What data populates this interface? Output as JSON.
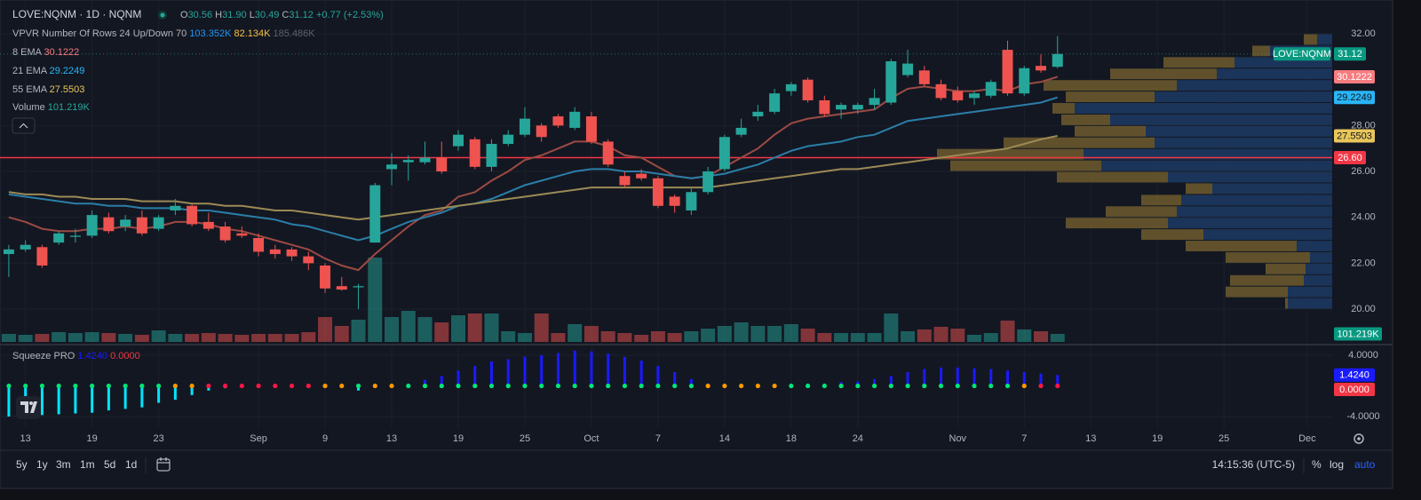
{
  "header": {
    "symbol": "LOVE:NQNM · 1D · NQNM",
    "ohlc": [
      {
        "key": "O",
        "value": "30.56"
      },
      {
        "key": "H",
        "value": "31.90"
      },
      {
        "key": "L",
        "value": "30.49"
      },
      {
        "key": "C",
        "value": "31.12"
      }
    ],
    "change": "+0.77 (+2.53%)"
  },
  "toolbar": {
    "ranges": [
      "5y",
      "1y",
      "3m",
      "1m",
      "5d",
      "1d"
    ],
    "time": "14:15:36 (UTC-5)",
    "percent": "%",
    "log": "log",
    "auto": "auto"
  },
  "chart_data": {
    "type": "candlestick",
    "symbol_tag": "LOVE:NQNM",
    "up_color": "#26a69a",
    "down_color": "#ef5350",
    "open": [
      22.4,
      22.6,
      22.7,
      22.9,
      23.15,
      23.2,
      24.0,
      23.6,
      24.0,
      23.5,
      24.3,
      24.5,
      23.8,
      23.6,
      23.3,
      23.1,
      22.6,
      22.6,
      22.3,
      21.9,
      21.0,
      20.95,
      22.9,
      26.1,
      26.4,
      26.4,
      26.6,
      27.1,
      27.4,
      26.2,
      27.2,
      27.6,
      28.0,
      28.4,
      27.9,
      28.4,
      27.3,
      25.8,
      25.9,
      25.7,
      24.9,
      24.3,
      25.1,
      26.1,
      27.6,
      28.4,
      28.6,
      29.5,
      30.0,
      29.1,
      28.7,
      28.7,
      28.9,
      29.0,
      30.2,
      30.4,
      29.8,
      29.5,
      29.2,
      29.3,
      31.3,
      29.4,
      30.6,
      30.56
    ],
    "high": [
      22.8,
      23.0,
      22.8,
      23.4,
      23.5,
      24.3,
      24.2,
      24.1,
      24.3,
      24.1,
      24.8,
      24.6,
      24.2,
      23.8,
      23.6,
      23.3,
      22.8,
      22.7,
      22.5,
      22.0,
      21.4,
      21.1,
      25.5,
      26.8,
      26.7,
      27.3,
      27.3,
      27.8,
      27.5,
      27.4,
      27.8,
      28.8,
      28.1,
      28.5,
      28.8,
      28.6,
      27.4,
      26.0,
      26.1,
      25.8,
      25.0,
      25.3,
      26.2,
      27.6,
      28.3,
      28.9,
      29.6,
      29.9,
      30.1,
      29.3,
      29.0,
      29.0,
      29.6,
      30.9,
      31.3,
      30.6,
      30.0,
      29.7,
      29.5,
      30.0,
      31.7,
      30.6,
      31.1,
      31.9
    ],
    "low": [
      21.4,
      22.5,
      21.8,
      22.8,
      22.9,
      23.1,
      23.3,
      23.4,
      23.2,
      23.4,
      24.1,
      23.6,
      23.4,
      22.9,
      23.1,
      22.3,
      22.2,
      22.1,
      21.7,
      20.7,
      20.8,
      20.0,
      22.9,
      25.4,
      25.6,
      26.3,
      25.9,
      26.9,
      26.1,
      26.0,
      27.1,
      27.5,
      27.3,
      27.9,
      27.8,
      27.2,
      26.2,
      25.3,
      25.6,
      24.4,
      24.2,
      24.1,
      25.0,
      26.0,
      27.5,
      28.2,
      28.5,
      29.3,
      29.0,
      28.4,
      28.3,
      28.5,
      28.7,
      28.9,
      30.1,
      29.7,
      29.1,
      29.0,
      28.9,
      29.2,
      29.3,
      29.3,
      30.3,
      30.49
    ],
    "close": [
      22.6,
      22.8,
      21.9,
      23.3,
      23.2,
      24.1,
      23.4,
      23.9,
      23.3,
      24.0,
      24.5,
      23.7,
      23.5,
      23.0,
      23.2,
      22.5,
      22.4,
      22.3,
      22.0,
      20.9,
      20.85,
      21.0,
      25.4,
      26.3,
      26.5,
      26.6,
      26.0,
      27.6,
      26.2,
      27.2,
      27.6,
      28.3,
      27.5,
      28.0,
      28.6,
      27.3,
      26.3,
      25.4,
      25.7,
      24.5,
      24.5,
      25.1,
      26.0,
      27.5,
      27.9,
      28.6,
      29.4,
      29.8,
      29.1,
      28.5,
      28.9,
      28.9,
      29.2,
      30.8,
      30.7,
      29.8,
      29.2,
      29.1,
      29.4,
      29.9,
      29.4,
      30.5,
      30.4,
      31.12
    ],
    "xlim": [
      -0.53,
      79.5
    ],
    "ylim": [
      18.57,
      32.31
    ],
    "yticks": [
      {
        "value": 32,
        "label": "32.00"
      },
      {
        "value": 28,
        "label": "28.00"
      },
      {
        "value": 26,
        "label": "26.00"
      },
      {
        "value": 24,
        "label": "24.00"
      },
      {
        "value": 22,
        "label": "22.00"
      },
      {
        "value": 20,
        "label": "20.00"
      }
    ],
    "xticks": [
      {
        "value": 1,
        "label": "13"
      },
      {
        "value": 5,
        "label": "19"
      },
      {
        "value": 9,
        "label": "23"
      },
      {
        "value": 15,
        "label": "Sep"
      },
      {
        "value": 19,
        "label": "9"
      },
      {
        "value": 23,
        "label": "13"
      },
      {
        "value": 27,
        "label": "19"
      },
      {
        "value": 31,
        "label": "25"
      },
      {
        "value": 35,
        "label": "Oct"
      },
      {
        "value": 39,
        "label": "7"
      },
      {
        "value": 43,
        "label": "14"
      },
      {
        "value": 47,
        "label": "18"
      },
      {
        "value": 51,
        "label": "24"
      },
      {
        "value": 57,
        "label": "Nov"
      },
      {
        "value": 61,
        "label": "7"
      },
      {
        "value": 65,
        "label": "13"
      },
      {
        "value": 69,
        "label": "19"
      },
      {
        "value": 73,
        "label": "25"
      },
      {
        "value": 78,
        "label": "Dec"
      }
    ],
    "grid": true,
    "hline": {
      "value": 26.6,
      "label": "26.60",
      "color": "#f23645"
    },
    "series": [
      {
        "name": "8 EMA",
        "color": "#9c4a43",
        "tag_color": "#f77c80",
        "values": [
          24.0,
          23.8,
          23.5,
          23.4,
          23.4,
          23.5,
          23.5,
          23.6,
          23.5,
          23.6,
          23.8,
          23.8,
          23.7,
          23.5,
          23.4,
          23.2,
          23.0,
          22.8,
          22.6,
          22.2,
          21.9,
          21.7,
          22.4,
          23.0,
          23.6,
          24.1,
          24.3,
          24.9,
          25.1,
          25.6,
          26.0,
          26.5,
          26.7,
          27.0,
          27.3,
          27.3,
          27.1,
          26.7,
          26.6,
          26.2,
          25.8,
          25.7,
          25.8,
          26.2,
          26.6,
          27.0,
          27.6,
          28.1,
          28.3,
          28.4,
          28.5,
          28.6,
          28.7,
          29.2,
          29.6,
          29.7,
          29.6,
          29.5,
          29.5,
          29.6,
          29.5,
          29.8,
          29.9,
          30.1222
        ]
      },
      {
        "name": "21 EMA",
        "color": "#2b7ea8",
        "tag_color": "#29b6f6",
        "values": [
          25.0,
          24.9,
          24.8,
          24.7,
          24.6,
          24.6,
          24.5,
          24.5,
          24.4,
          24.4,
          24.4,
          24.3,
          24.3,
          24.2,
          24.1,
          24.0,
          23.9,
          23.7,
          23.6,
          23.4,
          23.2,
          23.0,
          23.2,
          23.5,
          23.8,
          24.0,
          24.2,
          24.5,
          24.6,
          24.8,
          25.1,
          25.4,
          25.6,
          25.8,
          26.0,
          26.1,
          26.1,
          26.0,
          26.0,
          25.9,
          25.8,
          25.7,
          25.8,
          25.9,
          26.1,
          26.3,
          26.6,
          26.9,
          27.1,
          27.2,
          27.3,
          27.5,
          27.6,
          27.9,
          28.2,
          28.3,
          28.4,
          28.5,
          28.6,
          28.7,
          28.8,
          28.9,
          29.0,
          29.2249
        ]
      },
      {
        "name": "55 EMA",
        "color": "#9c8a55",
        "tag_color": "#e8c65a",
        "values": [
          25.1,
          25.0,
          25.0,
          24.9,
          24.9,
          24.8,
          24.8,
          24.8,
          24.7,
          24.7,
          24.7,
          24.6,
          24.6,
          24.5,
          24.5,
          24.4,
          24.3,
          24.3,
          24.2,
          24.1,
          24.0,
          23.9,
          24.0,
          24.1,
          24.2,
          24.3,
          24.4,
          24.5,
          24.6,
          24.7,
          24.8,
          24.9,
          25.0,
          25.1,
          25.2,
          25.3,
          25.3,
          25.3,
          25.3,
          25.3,
          25.3,
          25.3,
          25.3,
          25.4,
          25.5,
          25.6,
          25.7,
          25.8,
          25.9,
          26.0,
          26.1,
          26.1,
          26.2,
          26.3,
          26.4,
          26.5,
          26.6,
          26.7,
          26.8,
          26.9,
          27.0,
          27.2,
          27.4,
          27.5503
        ]
      }
    ],
    "volume": {
      "name": "Volume",
      "last_label": "101.219K",
      "values": [
        101250,
        90000,
        101250,
        123750,
        112500,
        123750,
        112500,
        101250,
        90000,
        146250,
        101250,
        101250,
        112500,
        101250,
        90000,
        101250,
        101250,
        101250,
        123750,
        315000,
        202500,
        281250,
        1068750,
        315000,
        393750,
        315000,
        247500,
        337500,
        360000,
        360000,
        135000,
        112500,
        360000,
        112500,
        225000,
        202500,
        135000,
        112500,
        90000,
        135000,
        112500,
        135000,
        168750,
        202500,
        247500,
        202500,
        202500,
        225000,
        168750,
        112500,
        112500,
        112500,
        112500,
        360000,
        135000,
        157500,
        191250,
        168750,
        90000,
        112500,
        270000,
        157500,
        135000,
        101219
      ]
    },
    "vpvr": {
      "title": "VPVR Number Of Rows 24 Up/Down 70",
      "legend": [
        {
          "text": "103.352K",
          "color": "#2196f3"
        },
        {
          "text": "82.134K",
          "color": "#f5c242"
        },
        {
          "text": "185.486K",
          "color": "#5d606b"
        }
      ],
      "row_low": 20,
      "row_size": 0.5,
      "up_color": "#1d3a63",
      "down_color": "#6e5c2e",
      "up": [
        50000,
        50000,
        32000,
        30000,
        25000,
        40000,
        145000,
        185000,
        175000,
        170000,
        135000,
        185000,
        260000,
        280000,
        200000,
        210000,
        250000,
        290000,
        200000,
        175000,
        130000,
        110000,
        70000,
        17000
      ],
      "down": [
        3000,
        70000,
        83000,
        45000,
        95000,
        125000,
        70000,
        115000,
        80000,
        45000,
        30000,
        125000,
        170000,
        165000,
        170000,
        80000,
        55000,
        25000,
        100000,
        150000,
        120000,
        80000,
        20000,
        15000
      ]
    },
    "squeeze": {
      "title": "Squeeze PRO",
      "up_color": "#1a1aff",
      "down_color": "#00e5ff",
      "ylim": [
        -5.5,
        5.16
      ],
      "yticks": [
        {
          "value": 4,
          "label": "4.0000"
        },
        {
          "value": -4,
          "label": "-4.0000"
        }
      ],
      "last_label": "1.4240",
      "last_color": "#1a1aff",
      "dot_value": 0,
      "dot_label": "0.0000",
      "dot_label_color": "#f23645",
      "values": [
        -4.0,
        -3.9,
        -3.8,
        -3.7,
        -3.6,
        -3.5,
        -3.2,
        -3.0,
        -2.8,
        -2.2,
        -1.8,
        -1.2,
        -0.6,
        -0.3,
        -0.1,
        -0.05,
        0.05,
        0.05,
        0.05,
        -0.1,
        -0.2,
        -0.6,
        -0.2,
        0.1,
        0.3,
        0.8,
        1.3,
        2.0,
        2.6,
        3.2,
        3.5,
        3.8,
        4.0,
        4.3,
        4.6,
        4.5,
        4.2,
        3.8,
        3.3,
        2.6,
        1.8,
        0.9,
        0.3,
        0.05,
        0.05,
        0.1,
        0.1,
        0.2,
        0.3,
        0.3,
        0.5,
        0.6,
        0.9,
        1.3,
        1.8,
        2.2,
        2.4,
        2.4,
        2.3,
        2.2,
        2.0,
        1.8,
        1.6,
        1.424
      ],
      "dots": [
        "#00e676",
        "#00e676",
        "#00e676",
        "#00e676",
        "#00e676",
        "#00e676",
        "#00e676",
        "#00e676",
        "#00e676",
        "#00e676",
        "#ff9800",
        "#ff9800",
        "#ff1744",
        "#ff1744",
        "#ff1744",
        "#ff1744",
        "#ff1744",
        "#ff1744",
        "#ff1744",
        "#ff9800",
        "#ff9800",
        "#00e676",
        "#ff9800",
        "#ff9800",
        "#00e676",
        "#00e676",
        "#00e676",
        "#00e676",
        "#00e676",
        "#00e676",
        "#00e676",
        "#00e676",
        "#00e676",
        "#00e676",
        "#00e676",
        "#00e676",
        "#00e676",
        "#00e676",
        "#00e676",
        "#00e676",
        "#00e676",
        "#00e676",
        "#ff9800",
        "#ff9800",
        "#ff9800",
        "#ff9800",
        "#ff9800",
        "#00e676",
        "#00e676",
        "#00e676",
        "#00e676",
        "#00e676",
        "#00e676",
        "#00e676",
        "#00e676",
        "#00e676",
        "#00e676",
        "#00e676",
        "#00e676",
        "#00e676",
        "#00e676",
        "#ff9800",
        "#ff1744",
        "#ff1744"
      ]
    }
  }
}
